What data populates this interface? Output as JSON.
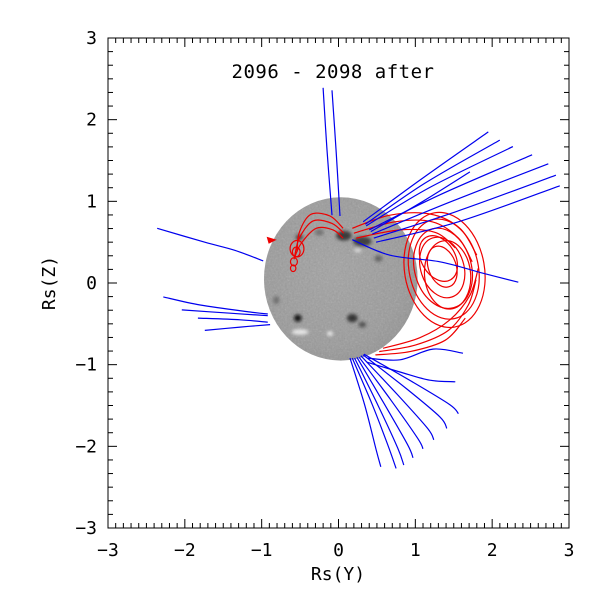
{
  "title": "2096 - 2098 after",
  "axes": {
    "xlabel": "Rs(Y)",
    "ylabel": "Rs(Z)",
    "xtick_labels": [
      "−3",
      "−2",
      "−1",
      "0",
      "1",
      "2",
      "3"
    ],
    "ytick_labels": [
      "−3",
      "−2",
      "−1",
      "0",
      "1",
      "2",
      "3"
    ],
    "x_minor_per_unit": 10,
    "y_minor_per_unit": 6
  },
  "colors": {
    "open_field": "#0000ee",
    "closed_field": "#ee0000",
    "axis": "#000000",
    "background": "#ffffff",
    "disk_gray": "#9b9b9b"
  },
  "chart_data": {
    "type": "line",
    "title": "2096 - 2098 after",
    "xlabel": "Rs(Y)",
    "ylabel": "Rs(Z)",
    "xlim": [
      -3,
      3
    ],
    "ylim": [
      -3,
      3
    ],
    "xticks": [
      -3,
      -2,
      -1,
      0,
      1,
      2,
      3
    ],
    "yticks": [
      -3,
      -2,
      -1,
      0,
      1,
      2,
      3
    ],
    "grid": false,
    "legend": "none",
    "sun_disk": {
      "center_y": 0.03,
      "center_z": 0.05,
      "radius": 1.0
    },
    "open_field_lines": [
      {
        "points": [
          [
            -0.2,
            2.39
          ],
          [
            -0.15,
            1.63
          ],
          [
            -0.085,
            0.83
          ]
        ]
      },
      {
        "points": [
          [
            -0.085,
            2.36
          ],
          [
            -0.03,
            1.6
          ],
          [
            0.02,
            0.82
          ]
        ]
      },
      {
        "points": [
          [
            0.32,
            0.75
          ],
          [
            1.06,
            1.26
          ],
          [
            1.95,
            1.85
          ]
        ]
      },
      {
        "points": [
          [
            0.35,
            0.72
          ],
          [
            1.12,
            1.22
          ],
          [
            2.1,
            1.75
          ]
        ]
      },
      {
        "points": [
          [
            0.36,
            0.7
          ],
          [
            1.19,
            1.17
          ],
          [
            2.27,
            1.67
          ]
        ]
      },
      {
        "points": [
          [
            0.4,
            0.65
          ],
          [
            1.32,
            1.08
          ],
          [
            2.52,
            1.57
          ]
        ]
      },
      {
        "points": [
          [
            0.44,
            0.6
          ],
          [
            1.45,
            0.99
          ],
          [
            2.73,
            1.46
          ]
        ]
      },
      {
        "points": [
          [
            0.46,
            0.55
          ],
          [
            1.52,
            0.87
          ],
          [
            2.83,
            1.32
          ]
        ]
      },
      {
        "points": [
          [
            0.49,
            0.5
          ],
          [
            1.56,
            0.75
          ],
          [
            2.88,
            1.19
          ]
        ]
      },
      {
        "points": [
          [
            0.42,
            0.63
          ],
          [
            1.1,
            1.0
          ],
          [
            1.71,
            1.36
          ]
        ]
      },
      {
        "points": [
          [
            0.18,
            0.53
          ],
          [
            0.67,
            0.34
          ],
          [
            1.32,
            0.26
          ],
          [
            1.84,
            0.13
          ],
          [
            2.34,
            0.01
          ]
        ]
      },
      {
        "points": [
          [
            -2.36,
            0.67
          ],
          [
            -1.74,
            0.5
          ],
          [
            -1.35,
            0.4
          ],
          [
            -0.98,
            0.27
          ]
        ]
      },
      {
        "points": [
          [
            -2.28,
            -0.17
          ],
          [
            -1.8,
            -0.27
          ],
          [
            -1.15,
            -0.355
          ],
          [
            -0.92,
            -0.38
          ]
        ]
      },
      {
        "points": [
          [
            -2.04,
            -0.33
          ],
          [
            -1.41,
            -0.37
          ],
          [
            -0.92,
            -0.4
          ]
        ]
      },
      {
        "points": [
          [
            -1.83,
            -0.43
          ],
          [
            -1.28,
            -0.45
          ],
          [
            -0.92,
            -0.48
          ]
        ]
      },
      {
        "points": [
          [
            -1.74,
            -0.58
          ],
          [
            -1.28,
            -0.54
          ],
          [
            -0.89,
            -0.51
          ]
        ]
      },
      {
        "points": [
          [
            0.15,
            -0.92
          ],
          [
            0.34,
            -1.49
          ],
          [
            0.49,
            -2.04
          ],
          [
            0.55,
            -2.25
          ]
        ]
      },
      {
        "points": [
          [
            0.18,
            -0.92
          ],
          [
            0.44,
            -1.49
          ],
          [
            0.64,
            -1.98
          ],
          [
            0.75,
            -2.27
          ]
        ]
      },
      {
        "points": [
          [
            0.21,
            -0.92
          ],
          [
            0.51,
            -1.49
          ],
          [
            0.77,
            -2.02
          ],
          [
            0.85,
            -2.23
          ]
        ]
      },
      {
        "points": [
          [
            0.24,
            -0.91
          ],
          [
            0.59,
            -1.47
          ],
          [
            0.9,
            -1.98
          ],
          [
            0.97,
            -2.14
          ]
        ]
      },
      {
        "points": [
          [
            0.27,
            -0.91
          ],
          [
            0.68,
            -1.43
          ],
          [
            1.03,
            -1.9
          ],
          [
            1.1,
            -2.03
          ]
        ]
      },
      {
        "points": [
          [
            0.29,
            -0.89
          ],
          [
            0.77,
            -1.37
          ],
          [
            1.16,
            -1.78
          ],
          [
            1.24,
            -1.92
          ]
        ]
      },
      {
        "points": [
          [
            0.32,
            -0.88
          ],
          [
            0.88,
            -1.29
          ],
          [
            1.32,
            -1.64
          ],
          [
            1.41,
            -1.78
          ]
        ]
      },
      {
        "points": [
          [
            0.33,
            -0.87
          ],
          [
            0.96,
            -1.21
          ],
          [
            1.45,
            -1.49
          ],
          [
            1.56,
            -1.6
          ]
        ]
      },
      {
        "points": [
          [
            0.38,
            -0.92
          ],
          [
            0.8,
            -0.94
          ],
          [
            1.23,
            -0.81
          ],
          [
            1.62,
            -0.86
          ]
        ]
      },
      {
        "points": [
          [
            0.37,
            -0.97
          ],
          [
            0.8,
            -1.09
          ],
          [
            1.19,
            -1.19
          ],
          [
            1.52,
            -1.21
          ]
        ]
      }
    ],
    "closed_field_lines": [
      {
        "points": [
          [
            -0.54,
            0.38
          ],
          [
            -0.51,
            0.62
          ],
          [
            -0.36,
            0.84
          ],
          [
            -0.11,
            0.82
          ],
          [
            0.06,
            0.67
          ]
        ]
      },
      {
        "points": [
          [
            -0.57,
            0.33
          ],
          [
            -0.51,
            0.55
          ],
          [
            -0.33,
            0.76
          ],
          [
            -0.085,
            0.73
          ],
          [
            0.07,
            0.61
          ]
        ]
      },
      {
        "points": [
          [
            -0.58,
            0.29
          ],
          [
            -0.49,
            0.48
          ],
          [
            -0.29,
            0.67
          ],
          [
            -0.07,
            0.65
          ],
          [
            0.06,
            0.55
          ]
        ]
      },
      {
        "points": [
          [
            0.18,
            0.67
          ],
          [
            0.67,
            0.83
          ],
          [
            1.19,
            0.845
          ],
          [
            1.58,
            0.67
          ],
          [
            1.8,
            0.34
          ]
        ]
      },
      {
        "points": [
          [
            0.2,
            0.61
          ],
          [
            0.735,
            0.75
          ],
          [
            1.22,
            0.75
          ],
          [
            1.56,
            0.55
          ],
          [
            1.74,
            0.26
          ]
        ]
      },
      {
        "points": [
          [
            0.23,
            0.55
          ],
          [
            0.8,
            0.65
          ],
          [
            1.26,
            0.62
          ],
          [
            1.52,
            0.43
          ]
        ]
      },
      {
        "points": [
          [
            0.58,
            -0.8
          ],
          [
            1.06,
            -0.67
          ],
          [
            1.45,
            -0.45
          ],
          [
            1.71,
            -0.15
          ],
          [
            1.82,
            0.18
          ]
        ]
      },
      {
        "points": [
          [
            0.53,
            -0.84
          ],
          [
            1.0,
            -0.76
          ],
          [
            1.43,
            -0.58
          ],
          [
            1.69,
            -0.27
          ],
          [
            1.79,
            0.04
          ]
        ]
      },
      {
        "points": [
          [
            0.48,
            -0.88
          ],
          [
            0.93,
            -0.84
          ],
          [
            1.39,
            -0.7
          ],
          [
            1.65,
            -0.43
          ]
        ]
      }
    ],
    "closed_field_loops": [
      [
        1.35,
        0.2,
        0.18,
        0.26,
        -20
      ],
      [
        1.35,
        0.19,
        0.28,
        0.38,
        -18
      ],
      [
        1.36,
        0.18,
        0.37,
        0.5,
        -15
      ],
      [
        1.37,
        0.17,
        0.45,
        0.62,
        -12
      ],
      [
        1.38,
        0.16,
        0.52,
        0.71,
        -10
      ],
      [
        1.3,
        0.3,
        0.22,
        0.3,
        -30
      ],
      [
        1.42,
        0.1,
        0.3,
        0.42,
        -5
      ],
      [
        -0.54,
        0.42,
        0.09,
        0.1,
        0
      ],
      [
        -0.55,
        0.38,
        0.05,
        0.06,
        0
      ],
      [
        -0.58,
        0.26,
        0.045,
        0.05,
        0
      ],
      [
        -0.59,
        0.18,
        0.035,
        0.04,
        0
      ]
    ],
    "arrow_marker": {
      "y": -0.87,
      "z": 0.53
    },
    "disk_features": [
      {
        "y": 0.07,
        "z": 0.58,
        "ry": 0.1,
        "rz": 0.06,
        "color": "#2a2a2a",
        "op": 0.85
      },
      {
        "y": 0.31,
        "z": 0.51,
        "ry": 0.12,
        "rz": 0.06,
        "color": "#2a2a2a",
        "op": 0.8
      },
      {
        "y": -0.51,
        "z": 0.56,
        "ry": 0.05,
        "rz": 0.035,
        "color": "#333333",
        "op": 0.8
      },
      {
        "y": -0.53,
        "z": -0.43,
        "ry": 0.05,
        "rz": 0.045,
        "color": "#111111",
        "op": 0.95
      },
      {
        "y": 0.18,
        "z": -0.43,
        "ry": 0.07,
        "rz": 0.05,
        "color": "#222222",
        "op": 0.85
      },
      {
        "y": 0.31,
        "z": -0.51,
        "ry": 0.05,
        "rz": 0.035,
        "color": "#333333",
        "op": 0.7
      },
      {
        "y": -0.5,
        "z": -0.6,
        "ry": 0.11,
        "rz": 0.035,
        "color": "#ededed",
        "op": 0.9
      },
      {
        "y": -0.11,
        "z": -0.62,
        "ry": 0.04,
        "rz": 0.03,
        "color": "#eeeeee",
        "op": 0.9
      },
      {
        "y": 0.25,
        "z": 0.4,
        "ry": 0.05,
        "rz": 0.025,
        "color": "#e8e8e8",
        "op": 0.8
      },
      {
        "y": -0.81,
        "z": -0.21,
        "ry": 0.04,
        "rz": 0.05,
        "color": "#444444",
        "op": 0.5
      },
      {
        "y": 0.52,
        "z": 0.3,
        "ry": 0.05,
        "rz": 0.04,
        "color": "#3a3a3a",
        "op": 0.6
      },
      {
        "y": -0.25,
        "z": 0.62,
        "ry": 0.06,
        "rz": 0.04,
        "color": "#4a4a4a",
        "op": 0.5
      }
    ]
  }
}
